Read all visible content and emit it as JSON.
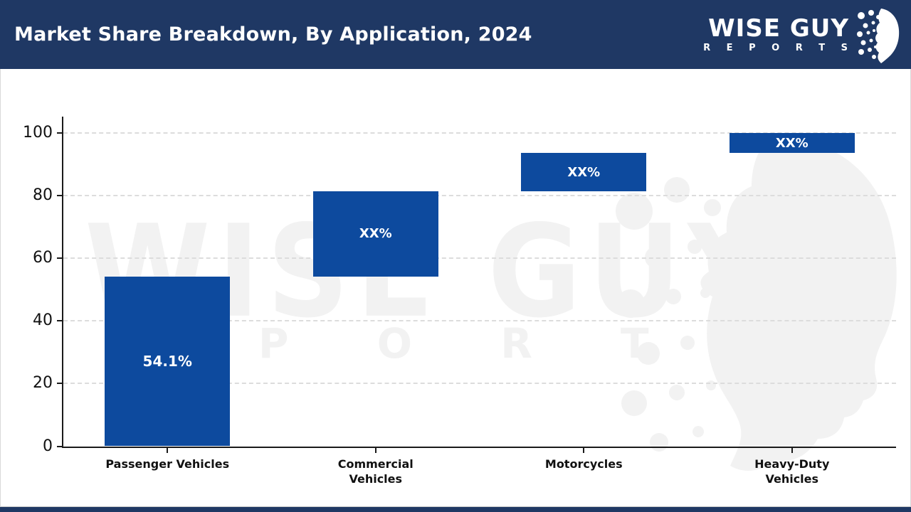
{
  "header": {
    "title": "Market Share Breakdown, By Application, 2024",
    "brand": {
      "line1": "WISE GUY",
      "line2": "R E P O R T S"
    }
  },
  "watermark": {
    "line1": "WISE GUY",
    "line2": "P O R T S"
  },
  "chart_data": {
    "type": "bar",
    "subtype": "waterfall",
    "title": "Market Share Breakdown, By Application, 2024",
    "xlabel": "",
    "ylabel": "",
    "categories": [
      [
        "Passenger Vehicles"
      ],
      [
        "Commercial",
        "Vehicles"
      ],
      [
        "Motorcycles"
      ],
      [
        "Heavy-Duty",
        "Vehicles"
      ]
    ],
    "segments": [
      {
        "start": 0,
        "end": 54.1,
        "label": "54.1%"
      },
      {
        "start": 54.1,
        "end": 81.3,
        "label": "XX%"
      },
      {
        "start": 81.3,
        "end": 93.5,
        "label": "XX%"
      },
      {
        "start": 93.5,
        "end": 99.8,
        "label": "XX%"
      }
    ],
    "yticks": [
      0,
      20,
      40,
      60,
      80,
      100
    ],
    "ylim": [
      0,
      105
    ],
    "grid": true,
    "legend_position": "none",
    "bar_color": "#0d4a9e",
    "grid_color": "#dcdcdc",
    "axis_color": "#1a1a1a",
    "header_color": "#1f3864",
    "watermark_color": "#f2f2f2"
  }
}
